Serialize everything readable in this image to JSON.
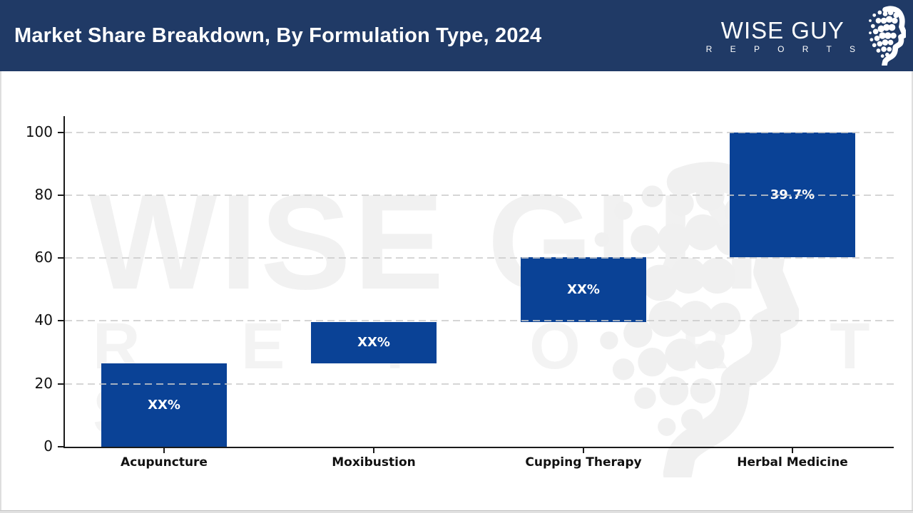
{
  "header": {
    "title": "Market Share Breakdown, By Formulation Type, 2024"
  },
  "logo": {
    "line1": "WISE GUY",
    "line2": "R E P O R T S"
  },
  "watermark": {
    "line1": "WISE GUY",
    "line2": "R E P O R T S"
  },
  "chart_data": {
    "type": "bar",
    "variant": "waterfall",
    "title": "Market Share Breakdown, By Formulation Type, 2024",
    "categories": [
      "Acupuncture",
      "Moxibustion",
      "Cupping Therapy",
      "Herbal Medicine"
    ],
    "segments": [
      {
        "category": "Acupuncture",
        "start": 0,
        "end": 26.5,
        "value_label": "XX%"
      },
      {
        "category": "Moxibustion",
        "start": 26.5,
        "end": 39.7,
        "value_label": "XX%"
      },
      {
        "category": "Cupping Therapy",
        "start": 39.7,
        "end": 60.3,
        "value_label": "XX%"
      },
      {
        "category": "Herbal Medicine",
        "start": 60.3,
        "end": 100,
        "value_label": "39.7%"
      }
    ],
    "xlabel": "",
    "ylabel": "",
    "yticks": [
      0,
      20,
      40,
      60,
      80,
      100
    ],
    "ylim": [
      0,
      105
    ],
    "grid": {
      "axis": "y",
      "style": "dashed",
      "color": "#d8d8d8",
      "above_bars": true
    },
    "legend": "none",
    "bar_color": "#0a4296",
    "bar_label_color": "#ffffff"
  },
  "colors": {
    "header_bg": "#203a66",
    "bar": "#0a4296",
    "grid": "#d8d8d8",
    "watermark": "#f1f1f1",
    "axis": "#1a1a1a",
    "edge_border": "#dedede"
  }
}
